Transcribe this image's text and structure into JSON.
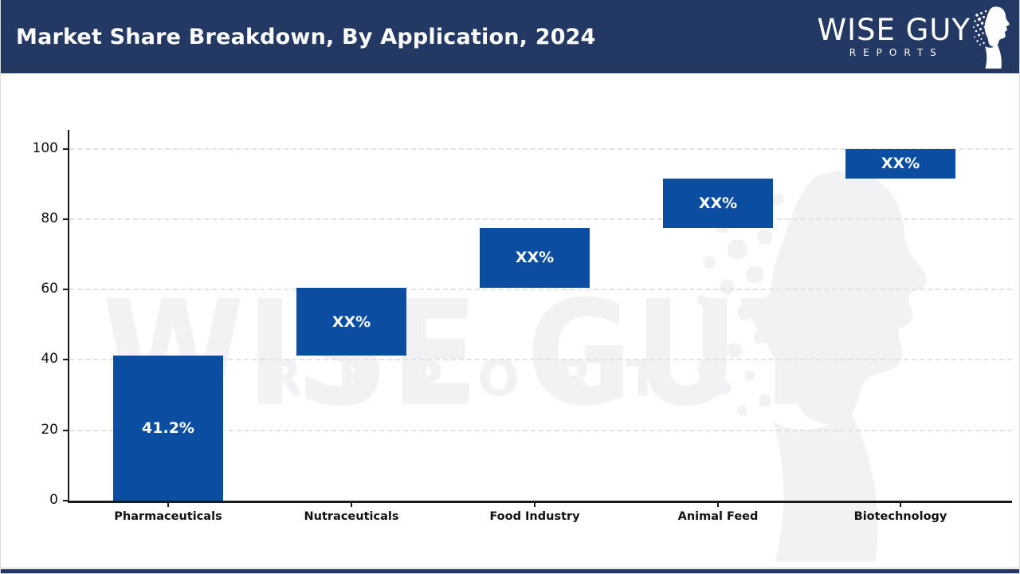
{
  "header": {
    "title": "Market Share Breakdown, By Application, 2024",
    "logo": {
      "line1": "WISE GUY",
      "line2": "REPORTS"
    }
  },
  "watermark": {
    "line1": "WISE GUY",
    "line2": "REPORTS"
  },
  "colors": {
    "header_bg": "#233862",
    "bar": "#0b4da1",
    "bar_label": "#ffffff",
    "axis": "#1a1a1a",
    "grid": "#e2e2e2",
    "watermark": "#f2f2f4",
    "bottom_strip": "#233862"
  },
  "chart_data": {
    "type": "bar",
    "subtype": "waterfall",
    "title": "Market Share Breakdown, By Application, 2024",
    "categories": [
      "Pharmaceuticals",
      "Nutraceuticals",
      "Food Industry",
      "Animal Feed",
      "Biotechnology"
    ],
    "segments": [
      {
        "category": "Pharmaceuticals",
        "start": 0,
        "end": 41.2,
        "label": "41.2%"
      },
      {
        "category": "Nutraceuticals",
        "start": 41.2,
        "end": 60.5,
        "label": "XX%"
      },
      {
        "category": "Food Industry",
        "start": 60.5,
        "end": 77.5,
        "label": "XX%"
      },
      {
        "category": "Animal Feed",
        "start": 77.5,
        "end": 91.5,
        "label": "XX%"
      },
      {
        "category": "Biotechnology",
        "start": 91.5,
        "end": 100,
        "label": "XX%"
      }
    ],
    "y_ticks": [
      0,
      20,
      40,
      60,
      80,
      100
    ],
    "ylim": [
      0,
      105
    ],
    "xlabel": "",
    "ylabel": "",
    "grid": "horizontal-dashed",
    "legend": "none"
  }
}
